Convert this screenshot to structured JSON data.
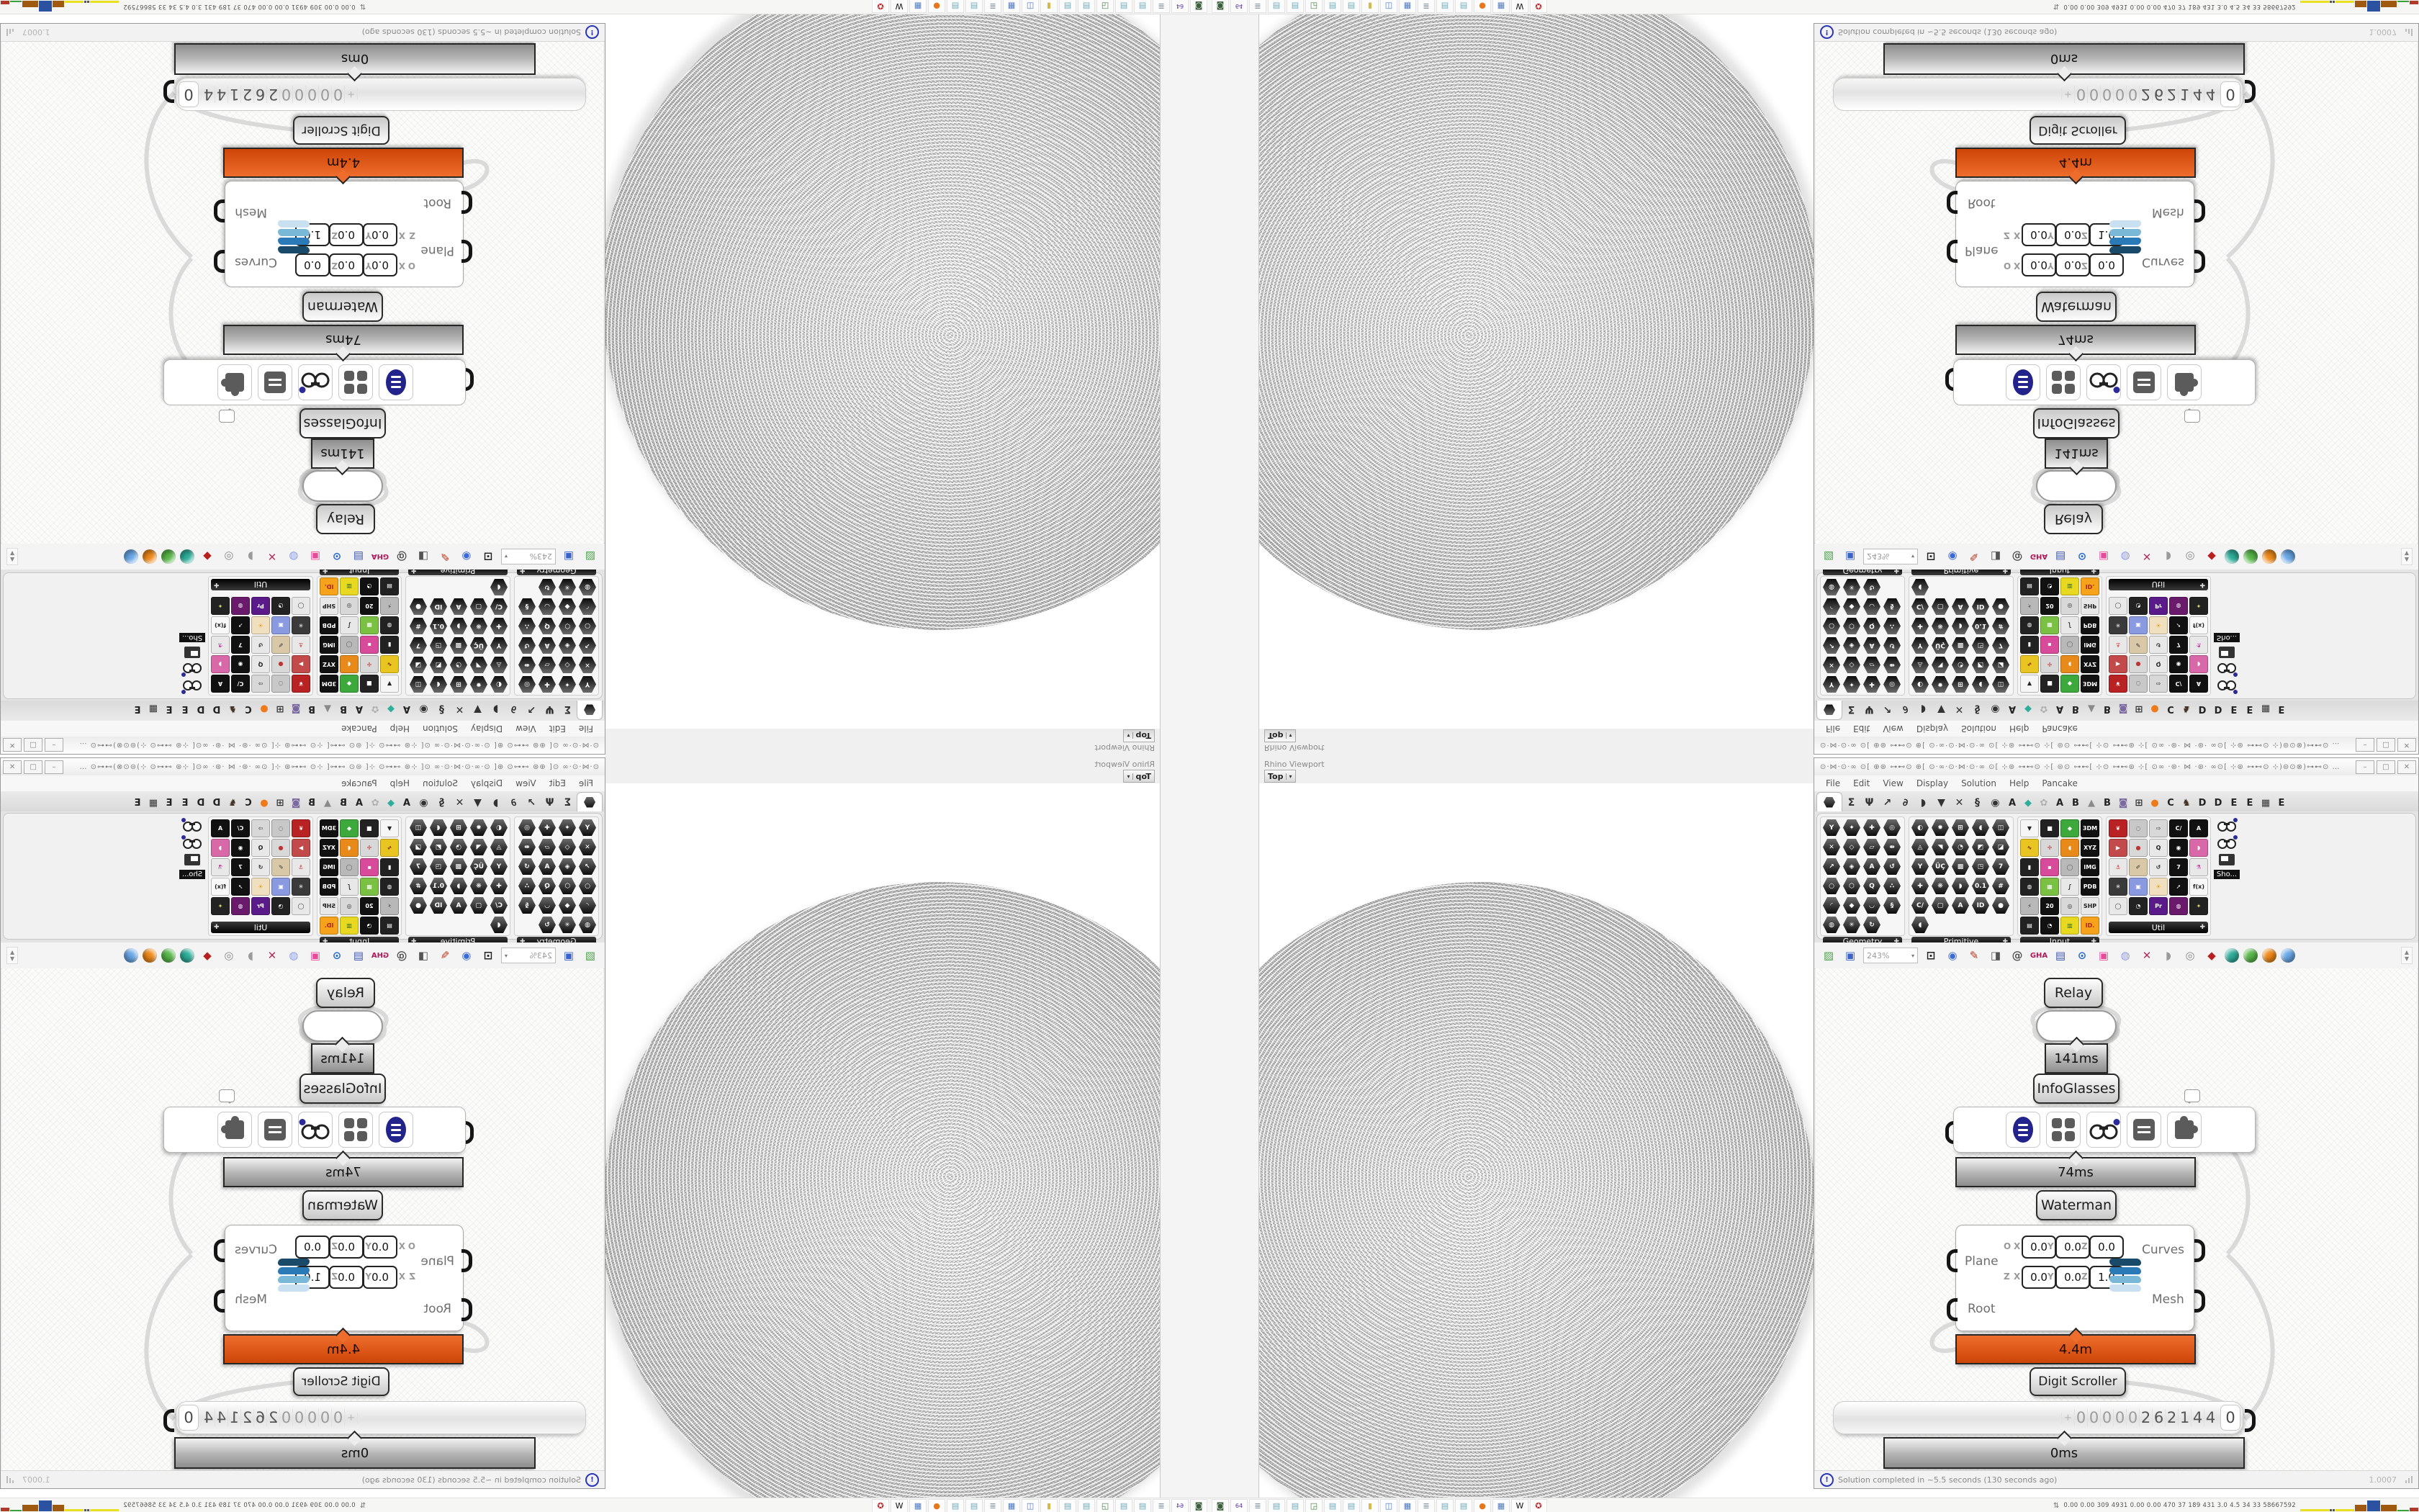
{
  "rhino": {
    "panel_title": "Rhino Viewport",
    "viewport_tab": "Top",
    "tab_caret": "▾"
  },
  "gh": {
    "titlebar": {
      "garbled_title": "⊙·⋈·⊙·∞ ⊙[ ⊕⊛ ⊶⊷⊙ ⊕[ ⊙·∞·⊙·⋈·⊙·∞ ⊙[ ⊹⊛ ⊶⊷⊙ ⊹[ ⊜⊙ ⊶⊷[ ⊹⊙ ⊶⊷⊛ ⊹[ ⊙∞ ·⊛· ⋈ ·⊛· ∞⊙[ ⊹⊛ ⊶⊷⊙ ⊹)⊜⊙⊗)⊶⊷⊙ …",
      "minimize": "–",
      "maximize": "□",
      "close": "✕"
    },
    "menu": [
      "File",
      "Edit",
      "View",
      "Display",
      "Solution",
      "Help",
      "Pancake"
    ],
    "category_tabs": [
      "Σ",
      "Ψ",
      "↗",
      "∂",
      "◗",
      "▼",
      "✕",
      "§",
      "◉"
    ],
    "plugin_tabs": [
      {
        "t": "A",
        "c": "#222222"
      },
      {
        "t": "◆",
        "c": "#2fae9b"
      },
      {
        "t": "✿",
        "c": "#b0b0b0"
      },
      {
        "t": "A",
        "c": "#222222"
      },
      {
        "t": "B",
        "c": "#222222"
      },
      {
        "t": "▲",
        "c": "#8a8a8a"
      },
      {
        "t": "B",
        "c": "#222222"
      },
      {
        "t": "◙",
        "c": "#7a6aa0"
      },
      {
        "t": "⊞",
        "c": "#333333"
      },
      {
        "t": "●",
        "c": "#ee7a1a"
      },
      {
        "t": "C",
        "c": "#222222"
      },
      {
        "t": "♞",
        "c": "#41301f"
      },
      {
        "t": "D",
        "c": "#222222"
      },
      {
        "t": "D",
        "c": "#222222"
      },
      {
        "t": "E",
        "c": "#222222"
      },
      {
        "t": "E",
        "c": "#222222"
      },
      {
        "t": "▦",
        "c": "#333333"
      },
      {
        "t": "E",
        "c": "#222222"
      }
    ],
    "palette_groups": [
      {
        "label": "Geometry",
        "style": "hex",
        "cols": 4,
        "cells": [
          "Y",
          "✦",
          "✚",
          "◎",
          "✕",
          "◇",
          "▱",
          "⇻",
          "↗",
          "◈",
          "A",
          "↺",
          "○",
          "⬡",
          "Q",
          "∴",
          "◜",
          "◆",
          "◡",
          "§",
          "◍",
          "✳",
          "↻"
        ]
      },
      {
        "label": "Primitive",
        "style": "hex",
        "cols": 5,
        "cells": [
          "◐",
          "✹",
          "⊞",
          "◖",
          "◫",
          "◬",
          "◥",
          "◔",
          "◩",
          "◪",
          "Y",
          "ÜÇ",
          "▩",
          "◳",
          "7",
          "✚",
          "❋",
          "◗",
          "0.1",
          "#",
          "C/",
          "▢",
          "A",
          "ID",
          "●",
          "◖"
        ]
      },
      {
        "label": "Input",
        "style": "color",
        "cols": 4,
        "cells": [
          [
            "▼",
            "#f6f6f6",
            "#222"
          ],
          [
            "■",
            "#222",
            "#fff"
          ],
          [
            "◆",
            "#3da93d",
            "#fff"
          ],
          [
            "3DM",
            "#111",
            "#fff"
          ],
          [
            "∿",
            "#e8c520",
            "#7a1111"
          ],
          [
            "✛",
            "#d8d8d8",
            "#c03333"
          ],
          [
            "◖",
            "#e88a1a",
            "#fff"
          ],
          [
            "XYZ",
            "#111",
            "#fff"
          ],
          [
            "▮",
            "#222",
            "#fff"
          ],
          [
            "▪",
            "#d84a9a",
            "#fff"
          ],
          [
            "◯",
            "#b8b8b8",
            "#555"
          ],
          [
            "IMG",
            "#111",
            "#fff"
          ],
          [
            "◍",
            "#222",
            "#fff"
          ],
          [
            "▦",
            "#7ac143",
            "#fff"
          ],
          [
            "∫",
            "#e8e8e8",
            "#222"
          ],
          [
            "PDB",
            "#111",
            "#fff"
          ],
          [
            "⚡",
            "#b8b8b8",
            "#333"
          ],
          [
            "20",
            "#111",
            "#fff"
          ],
          [
            "◎",
            "#d8d8d8",
            "#333"
          ],
          [
            "SHP",
            "#e8e8e8",
            "#222"
          ],
          [
            "▤",
            "#222",
            "#fff"
          ],
          [
            "◔",
            "#111",
            "#fff"
          ],
          [
            "▥",
            "#e8d820",
            "#2a6a2a"
          ],
          [
            "ID.",
            "#f6a21a",
            "#aa2222"
          ]
        ]
      },
      {
        "label": "Util",
        "style": "color",
        "cols": 5,
        "cells": [
          [
            "❦",
            "#b82222",
            "#fff"
          ],
          [
            "◌",
            "#c8c8c8",
            "#333"
          ],
          [
            "⇨",
            "#d8d8d8",
            "#555"
          ],
          [
            "C/",
            "#111",
            "#fff"
          ],
          [
            "A",
            "#111",
            "#fff"
          ],
          [
            "▶",
            "#c24a4a",
            "#fff"
          ],
          [
            "●",
            "#d8d8d8",
            "#c03333"
          ],
          [
            "Q",
            "#e8e8e8",
            "#222"
          ],
          [
            "◉",
            "#111",
            "#fff"
          ],
          [
            "◗",
            "#d868a8",
            "#fff"
          ],
          [
            "⚓",
            "#e8e8e8",
            "#d03333"
          ],
          [
            "✐",
            "#d8c8a8",
            "#333"
          ],
          [
            "↺",
            "#e8e8e8",
            "#222"
          ],
          [
            "7",
            "#111",
            "#fff"
          ],
          [
            "⚗",
            "#e8e8e8",
            "#c238a0"
          ],
          [
            "✳",
            "#3a3a3a",
            "#fff"
          ],
          [
            "▣",
            "#8a9ae0",
            "#fff"
          ],
          [
            "☀",
            "#f0e0c0",
            "#e8a020"
          ],
          [
            "➚",
            "#111",
            "#fff"
          ],
          [
            "f(x)",
            "#f8f8f8",
            "#222"
          ],
          [
            "◯",
            "#e8e8e8",
            "#333"
          ],
          [
            "◔",
            "#222",
            "#fff"
          ],
          [
            "Pr",
            "#5a1a8a",
            "#fff"
          ],
          [
            "◍",
            "#6a1a6a",
            "#fff"
          ],
          [
            "✦",
            "#222",
            "#d8d868"
          ]
        ]
      }
    ],
    "palette_tooltip": "Sho...",
    "toolbar": {
      "open_icon": "▨",
      "save_icon": "▣",
      "zoom_value": "243%",
      "icons": [
        {
          "g": "⊡",
          "c": "#222222"
        },
        {
          "g": "◉",
          "c": "#3a6ad8"
        },
        {
          "g": "✎",
          "c": "#c03318"
        },
        {
          "g": "◨",
          "c": "#555555"
        },
        {
          "g": "@",
          "c": "#555555"
        },
        {
          "g": "GHA",
          "c": "#b01858"
        },
        {
          "g": "▤",
          "c": "#3a55b0"
        },
        {
          "g": "⊙",
          "c": "#2a6ad0"
        },
        {
          "g": "▣",
          "c": "#e84a9a"
        },
        {
          "g": "◍",
          "c": "#8a9ae8"
        },
        {
          "g": "✕",
          "c": "#b03060"
        },
        {
          "g": "◗",
          "c": "#9a9a9a"
        },
        {
          "g": "◎",
          "c": "#8a8a8a"
        },
        {
          "g": "◆",
          "c": "#b82020"
        }
      ],
      "blobs": [
        "#2fae9b",
        "#58b84a",
        "#ef8a1a",
        "#6aa8e8"
      ]
    },
    "nodes": {
      "relay_label": "Relay",
      "relay_time": "141ms",
      "infoglasses_label": "InfoGlasses",
      "hud_icons": [
        "list-ball",
        "grid4",
        "goggles",
        "archive",
        "puzzle"
      ],
      "hud_time": "74ms",
      "waterman_label": "Waterman",
      "plane_input": "Plane",
      "root_input": "Root",
      "curves_output": "Curves",
      "mesh_output": "Mesh",
      "axis_x": "X",
      "axis_y": "Y",
      "axis_z": "Z",
      "plane_rows": [
        {
          "lead": "O",
          "x": "0.0",
          "y": "0.0",
          "z": "0.0"
        },
        {
          "lead": "Z",
          "x": "0.0",
          "y": "0.0",
          "z": "1.0"
        }
      ],
      "waterman_time": "4.4m",
      "scroller_label": "Digit Scroller",
      "scroller_digits": [
        "+",
        "0",
        "0",
        "0",
        "0",
        "0",
        "2",
        "6",
        "2",
        "1",
        "4",
        "4"
      ],
      "scroller_last_digit": "0",
      "scroller_time": "0ms"
    },
    "status": {
      "message": "Solution completed in ~5.5 seconds (130 seconds ago)",
      "zoom_readout": "1.0007"
    }
  },
  "taskbar": {
    "buttons": [
      {
        "g": "◙",
        "c": "#3a5f3a"
      },
      {
        "g": "64",
        "c": "#5533aa"
      },
      {
        "g": "≣",
        "c": "#7a8aa0"
      },
      {
        "g": "▤",
        "c": "#6aa8b8"
      },
      {
        "g": "▤",
        "c": "#6aa8b8"
      },
      {
        "g": "◲",
        "c": "#3f7f3f"
      },
      {
        "g": "▤",
        "c": "#6aa8b8"
      },
      {
        "g": "▤",
        "c": "#6aa8b8"
      },
      {
        "g": "▮",
        "c": "#d8b84a"
      },
      {
        "g": "◫",
        "c": "#4a78c0"
      },
      {
        "g": "▦",
        "c": "#4a78c0"
      },
      {
        "g": "≣",
        "c": "#7a8aa0"
      },
      {
        "g": "▤",
        "c": "#6aa8b8"
      },
      {
        "g": "▤",
        "c": "#6aa8b8"
      },
      {
        "g": "●",
        "c": "#e8761a"
      },
      {
        "g": "▦",
        "c": "#4a78c0"
      },
      {
        "g": "W",
        "c": "#111111"
      },
      {
        "g": "✪",
        "c": "#bb2222"
      }
    ],
    "tray_arrows": "⇅",
    "tray_numbers": "0.00 0.00 309 4931 0.00 0.00 470 37 189 431 3.0 4.5 34 33 58667592",
    "tray_chart": [
      [
        "#e8e020",
        40,
        3
      ],
      [
        "#555555",
        3,
        3
      ],
      [
        "#555555",
        3,
        3
      ],
      [
        "#e8e020",
        26,
        3
      ],
      [
        "#a05a10",
        16,
        9
      ],
      [
        "#2a52a0",
        18,
        15
      ],
      [
        "#a05a10",
        22,
        9
      ],
      [
        "#3aa03a",
        16,
        2
      ],
      [
        "#b03a2a",
        12,
        5
      ]
    ]
  }
}
